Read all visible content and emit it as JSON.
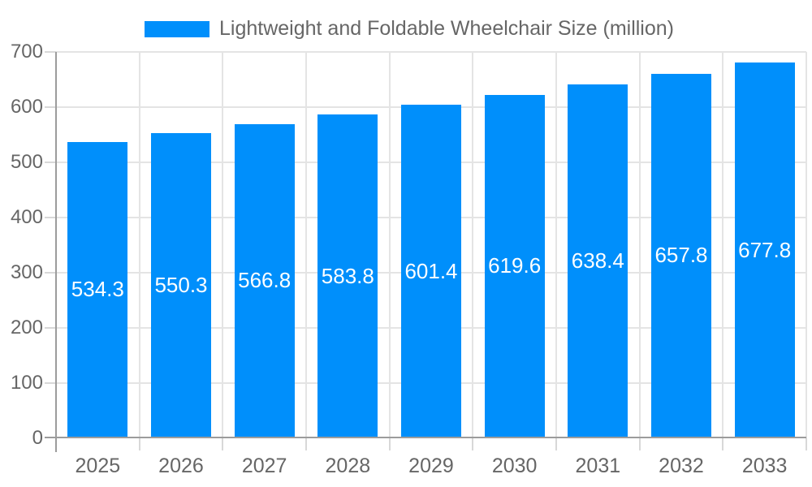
{
  "legend": {
    "label": "Lightweight and Foldable Wheelchair Size (million)"
  },
  "chart_data": {
    "type": "bar",
    "title": "Lightweight and Foldable Wheelchair Size (million)",
    "categories": [
      "2025",
      "2026",
      "2027",
      "2028",
      "2029",
      "2030",
      "2031",
      "2032",
      "2033"
    ],
    "series": [
      {
        "name": "Lightweight and Foldable Wheelchair Size (million)",
        "values": [
          534.3,
          550.3,
          566.8,
          583.8,
          601.4,
          619.6,
          638.4,
          657.8,
          677.8
        ]
      }
    ],
    "value_labels": [
      "534.3",
      "550.3",
      "566.8",
      "583.8",
      "601.4",
      "619.6",
      "638.4",
      "657.8",
      "677.8"
    ],
    "xlabel": "",
    "ylabel": "",
    "ylim": [
      0,
      700
    ],
    "ytick_step": 100,
    "ytick_labels": [
      "0",
      "100",
      "200",
      "300",
      "400",
      "500",
      "600",
      "700"
    ],
    "grid": true,
    "legend_position": "top",
    "value_label_position": "inside-center",
    "colors": {
      "bar": "#008FFB",
      "value_label": "#ffffff",
      "axis_label": "#666666",
      "legend_label": "#666666",
      "grid_line": "#e4e4e4",
      "axis_line": "#9c9c9c",
      "tick": "#d8d8d8",
      "background": "#ffffff"
    }
  }
}
